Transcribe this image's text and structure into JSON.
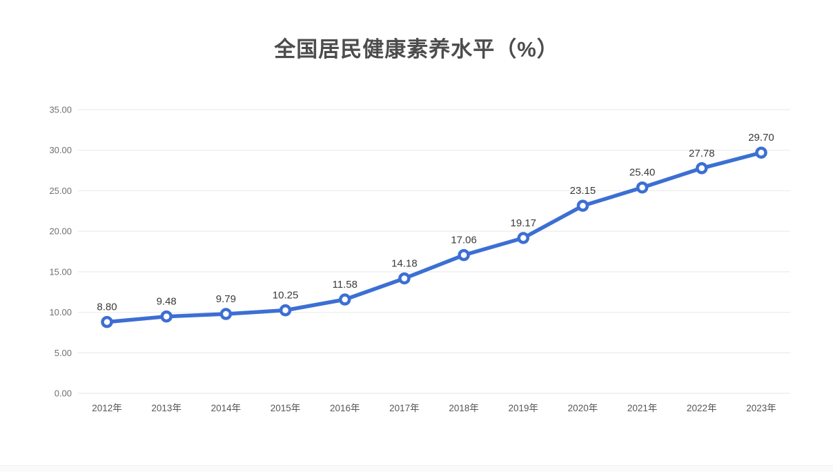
{
  "page": {
    "background": "#FFFFFF"
  },
  "chart_data": {
    "type": "line",
    "title": "全国居民健康素养水平（%）",
    "categories": [
      "2012年",
      "2013年",
      "2014年",
      "2015年",
      "2016年",
      "2017年",
      "2018年",
      "2019年",
      "2020年",
      "2021年",
      "2022年",
      "2023年"
    ],
    "values": [
      8.8,
      9.48,
      9.79,
      10.25,
      11.58,
      14.18,
      17.06,
      19.17,
      23.15,
      25.4,
      27.78,
      29.7
    ],
    "point_labels": [
      "8.80",
      "9.48",
      "9.79",
      "10.25",
      "11.58",
      "14.18",
      "17.06",
      "19.17",
      "23.15",
      "25.40",
      "27.78",
      "29.70"
    ],
    "y_ticks": [
      "0.00",
      "5.00",
      "10.00",
      "15.00",
      "20.00",
      "25.00",
      "30.00",
      "35.00"
    ],
    "ylim": [
      0,
      35
    ],
    "xlabel": "",
    "ylabel": "",
    "grid": "horizontal",
    "legend": "none",
    "colors": {
      "line": "#3C6FD3",
      "marker_fill": "#FFFFFF",
      "grid_line": "#EBEBEB",
      "title_text": "#4C4C4C",
      "y_axis_text": "#6F6F6F",
      "x_axis_text": "#565656",
      "data_label_text": "#3A3A3A"
    }
  }
}
